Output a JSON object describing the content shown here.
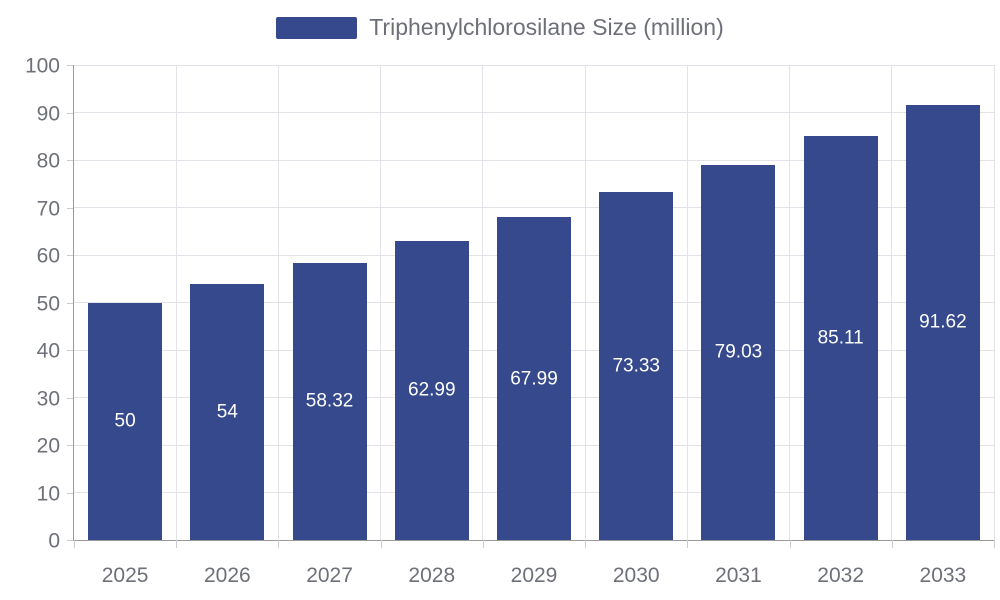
{
  "legend": {
    "label": "Triphenylchlorosilane Size (million)"
  },
  "colors": {
    "bar": "#36498c",
    "axis_line": "#999999",
    "grid_line": "#e2e2e8",
    "tick_mark": "#cccccc",
    "axis_text": "#6e7079",
    "legend_text": "#6e7079",
    "value_label": "#ffffff",
    "background": "#ffffff"
  },
  "chart_data": {
    "type": "bar",
    "title": "",
    "legend": "Triphenylchlorosilane Size (million)",
    "legend_position": "top-center",
    "categories": [
      "2025",
      "2026",
      "2027",
      "2028",
      "2029",
      "2030",
      "2031",
      "2032",
      "2033"
    ],
    "values": [
      50,
      54,
      58.32,
      62.99,
      67.99,
      73.33,
      79.03,
      85.11,
      91.62
    ],
    "value_labels": [
      "50",
      "54",
      "58.32",
      "62.99",
      "67.99",
      "73.33",
      "79.03",
      "85.11",
      "91.62"
    ],
    "xlabel": "",
    "ylabel": "",
    "ylim": [
      0,
      100
    ],
    "y_ticks": [
      0,
      10,
      20,
      30,
      40,
      50,
      60,
      70,
      80,
      90,
      100
    ],
    "grid": true,
    "bar_width_fraction": 0.725
  }
}
